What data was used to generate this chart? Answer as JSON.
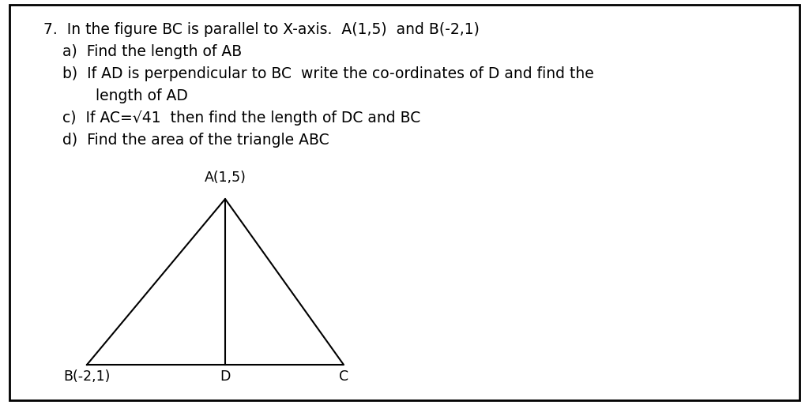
{
  "line1": "7.  In the figure BC is parallel to X-axis.  A(1,5)  and B(-2,1)",
  "line2": "    a)  Find the length of AB",
  "line3": "    b)  If AD is perpendicular to BC  write the co-ordinates of D and find the",
  "line4": "           length of AD",
  "line5": "    c)  If AC=√41  then find the length of DC and BC",
  "line6": "    d)  Find the area of the triangle ABC",
  "label_A": "A(1,5)",
  "label_B": "B(-2,1)",
  "label_D": "D",
  "label_C": "C",
  "bg_color": "#ffffff",
  "line_color": "#000000",
  "text_color": "#000000",
  "border_color": "#000000",
  "font_size": 13.5
}
